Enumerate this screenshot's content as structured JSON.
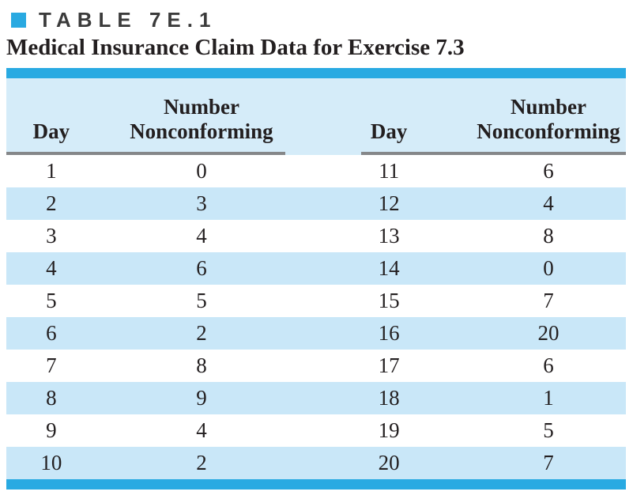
{
  "figure": {
    "label": "TABLE 7E.1",
    "caption": "Medical Insurance Claim Data for Exercise 7.3",
    "bullet_color": "#29a9e1",
    "accent_bar_color": "#29aae2",
    "header_bg_color": "#d5ecf9",
    "stripe_color": "#c9e7f8",
    "rule_color": "#858789"
  },
  "table": {
    "header": {
      "day_left": "Day",
      "nonconforming_left_line1": "Number",
      "nonconforming_left_line2": "Nonconforming",
      "day_right": "Day",
      "nonconforming_right_line1": "Number",
      "nonconforming_right_line2": "Nonconforming"
    },
    "rows": [
      {
        "day_left": "1",
        "nonconforming_left": "0",
        "day_right": "11",
        "nonconforming_right": "6"
      },
      {
        "day_left": "2",
        "nonconforming_left": "3",
        "day_right": "12",
        "nonconforming_right": "4"
      },
      {
        "day_left": "3",
        "nonconforming_left": "4",
        "day_right": "13",
        "nonconforming_right": "8"
      },
      {
        "day_left": "4",
        "nonconforming_left": "6",
        "day_right": "14",
        "nonconforming_right": "0"
      },
      {
        "day_left": "5",
        "nonconforming_left": "5",
        "day_right": "15",
        "nonconforming_right": "7"
      },
      {
        "day_left": "6",
        "nonconforming_left": "2",
        "day_right": "16",
        "nonconforming_right": "20"
      },
      {
        "day_left": "7",
        "nonconforming_left": "8",
        "day_right": "17",
        "nonconforming_right": "6"
      },
      {
        "day_left": "8",
        "nonconforming_left": "9",
        "day_right": "18",
        "nonconforming_right": "1"
      },
      {
        "day_left": "9",
        "nonconforming_left": "4",
        "day_right": "19",
        "nonconforming_right": "5"
      },
      {
        "day_left": "10",
        "nonconforming_left": "2",
        "day_right": "20",
        "nonconforming_right": "7"
      }
    ]
  },
  "chart_data": {
    "type": "table",
    "title": "TABLE 7E.1 — Medical Insurance Claim Data for Exercise 7.3",
    "columns": [
      "Day",
      "Number Nonconforming"
    ],
    "x": [
      1,
      2,
      3,
      4,
      5,
      6,
      7,
      8,
      9,
      10,
      11,
      12,
      13,
      14,
      15,
      16,
      17,
      18,
      19,
      20
    ],
    "values": [
      0,
      3,
      4,
      6,
      5,
      2,
      8,
      9,
      4,
      2,
      6,
      4,
      8,
      0,
      7,
      20,
      6,
      1,
      5,
      7
    ]
  }
}
